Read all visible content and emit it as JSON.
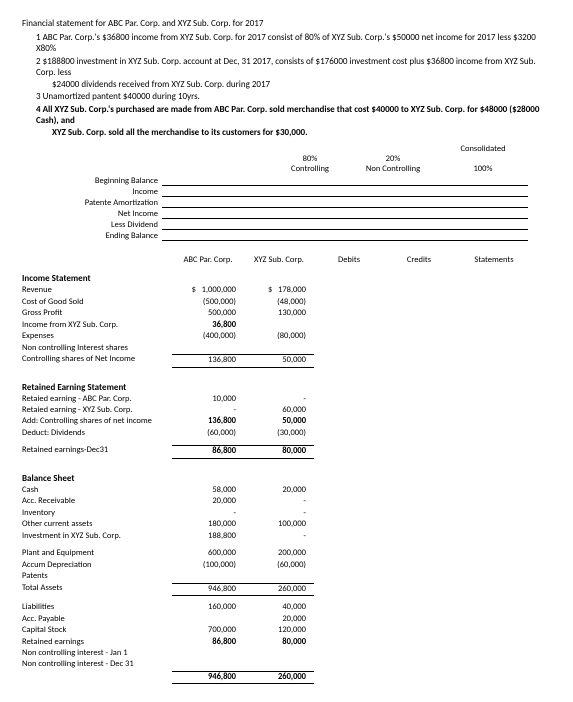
{
  "title": "Financial statement for ABC Par. Corp. and XYZ Sub. Corp. for 2017",
  "notes": {
    "n1": "1 ABC Par. Corp.'s $36800 income from XYZ Sub. Corp. for 2017 consist of 80% of XYZ Sub. Corp.'s $50000 net income for 2017 less $3200 X80%",
    "n2a": "2 $188800 investment in XYZ Sub. Corp. account at Dec, 31 2017, consists of $176000 investment cost plus $36800 income from XYZ Sub. Corp. less",
    "n2b": "$24000 dividends received from XYZ Sub. Corp. during 2017",
    "n3": "3 Unamortized pantent $40000 during 10yrs.",
    "n4a": "4 All XYZ Sub. Corp.'s purchased are made from ABC Par. Corp. sold merchandise that cost $40000 to XYZ Sub. Corp. for $48000 ($28000 Cash), and",
    "n4b": "XYZ Sub. Corp. sold all the merchandise to its customers for $30,000."
  },
  "consolidated": {
    "title": "Consolidated",
    "pct80": "80%",
    "pct20": "20%",
    "controlling": "Controlling",
    "noncontrolling": "Non Controlling",
    "pct100": "100%",
    "rows": [
      "Beginning Balance",
      "Income",
      "Patente Amortization",
      "Net Income",
      "Less Dividend",
      "Ending Balance"
    ]
  },
  "headers": {
    "c1": "ABC Par. Corp.",
    "c2": "XYZ Sub. Corp.",
    "c3": "Debits",
    "c4": "Credits",
    "c5": "Statements"
  },
  "income": {
    "title": "Income Statement",
    "rows": [
      {
        "label": "Revenue",
        "a": "1,000,000",
        "b": "178,000",
        "pre": "$",
        "mid": "$"
      },
      {
        "label": "Cost of Good Sold",
        "a": "(500,000)",
        "b": "(48,000)"
      },
      {
        "label": "Gross Profit",
        "a": "500,000",
        "b": "130,000"
      },
      {
        "label": "Income from XYZ Sub. Corp.",
        "a": "36,800",
        "b": "",
        "bold": true
      },
      {
        "label": "Expenses",
        "a": "(400,000)",
        "b": "(80,000)"
      },
      {
        "label": "Non controlling Interest shares",
        "a": "",
        "b": ""
      },
      {
        "label": "Controlling shares of Net Income",
        "a": "136,800",
        "b": "50,000",
        "total": true
      }
    ]
  },
  "retained": {
    "title": "Retained Earning Statement",
    "rows": [
      {
        "label": "Retaied earning - ABC Par. Corp.",
        "a": "10,000",
        "b": "-"
      },
      {
        "label": "Retaied earning - XYZ Sub. Corp.",
        "a": "-",
        "b": "60,000"
      },
      {
        "label": "Add: Controlling shares of net income",
        "a": "136,800",
        "b": "50,000",
        "bold": true
      },
      {
        "label": "Deduct: Dividends",
        "a": "(60,000)",
        "b": "(30,000)"
      }
    ],
    "final": {
      "label": "Retained earnings-Dec31",
      "a": "86,800",
      "b": "80,000"
    }
  },
  "balance": {
    "title": "Balance Sheet",
    "assets": [
      {
        "label": "Cash",
        "a": "58,000",
        "b": "20,000"
      },
      {
        "label": "Acc. Receivable",
        "a": "20,000",
        "b": "-"
      },
      {
        "label": "Inventory",
        "a": "-",
        "b": "-"
      },
      {
        "label": "Other current assets",
        "a": "180,000",
        "b": "100,000"
      },
      {
        "label": "Investment in XYZ Sub. Corp.",
        "a": "188,800",
        "b": "-"
      }
    ],
    "assets2": [
      {
        "label": "Plant and Equipment",
        "a": "600,000",
        "b": "200,000"
      },
      {
        "label": "Accum Depreciation",
        "a": "(100,000)",
        "b": "(60,000)"
      },
      {
        "label": "Patents",
        "a": "",
        "b": ""
      },
      {
        "label": "Total Assets",
        "a": "946,800",
        "b": "260,000",
        "total": true
      }
    ],
    "liab": [
      {
        "label": "Liabilities",
        "a": "160,000",
        "b": "40,000"
      },
      {
        "label": "Acc. Payable",
        "a": "",
        "b": "20,000"
      },
      {
        "label": "Capital Stock",
        "a": "700,000",
        "b": "120,000"
      },
      {
        "label": "Retained earnings",
        "a": "86,800",
        "b": "80,000",
        "bold": true
      },
      {
        "label": "Non controlling interest - Jan 1",
        "a": "",
        "b": ""
      },
      {
        "label": "Non controlling interest - Dec 31",
        "a": "",
        "b": ""
      }
    ],
    "final": {
      "a": "946,800",
      "b": "260,000"
    }
  }
}
